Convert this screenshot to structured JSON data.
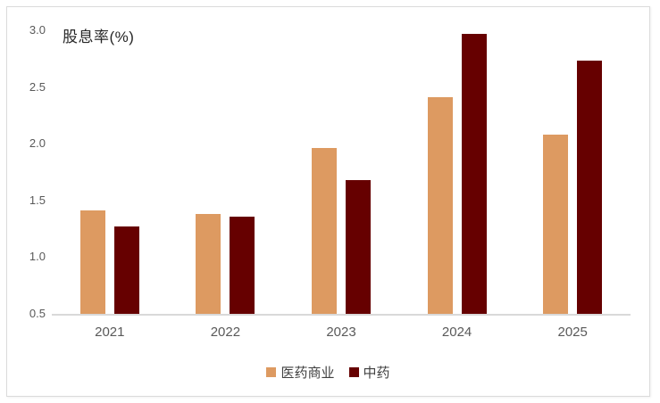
{
  "chart_data": {
    "type": "bar",
    "title": "股息率(%)",
    "categories": [
      "2021",
      "2022",
      "2023",
      "2024",
      "2025"
    ],
    "series": [
      {
        "name": "医药商业",
        "color": "#DD9A61",
        "values": [
          1.41,
          1.38,
          1.96,
          2.41,
          2.08
        ]
      },
      {
        "name": "中药",
        "color": "#660000",
        "values": [
          1.27,
          1.36,
          1.68,
          2.97,
          2.73
        ]
      }
    ],
    "xlabel": "",
    "ylabel": "",
    "ylim": [
      0.5,
      3.0
    ],
    "yticks": [
      "3.0",
      "2.5",
      "2.0",
      "1.5",
      "1.0",
      "0.5"
    ],
    "grid": false,
    "legend_position": "bottom"
  },
  "colors": {
    "axis_line": "#d9d9d9",
    "tick_text": "#595959",
    "frame_border": "#dbdbdb",
    "title_text": "#262626",
    "background": "#ffffff"
  }
}
